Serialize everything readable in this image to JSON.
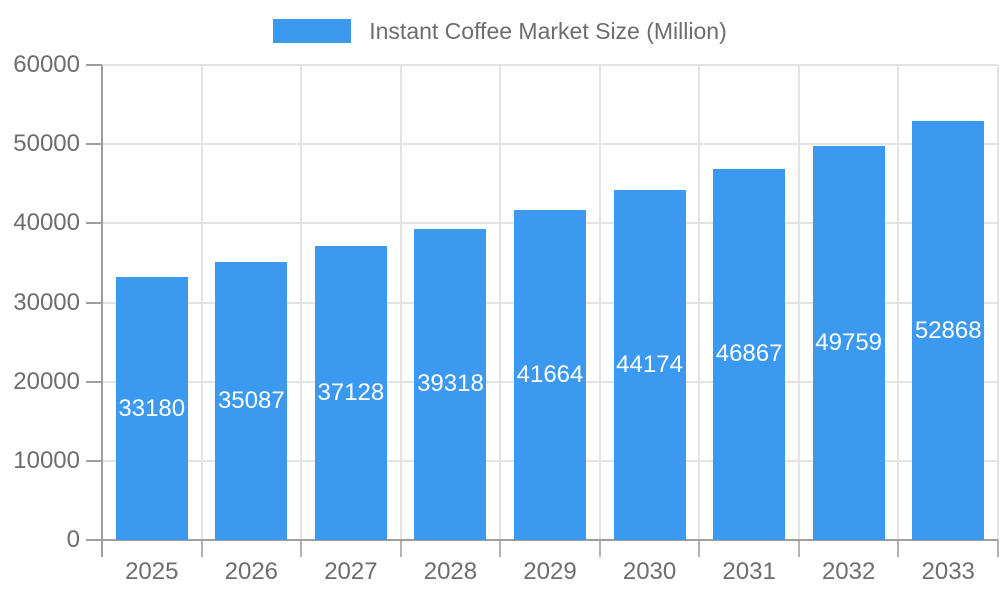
{
  "legend": {
    "position": "top-center"
  },
  "colors": {
    "bar": "#3b99f0",
    "axis_line": "#9e9e9e",
    "grid_line": "#e4e4e4",
    "boundary_tick": "#b3b3b3",
    "tick_text": "#6d6d6d",
    "bar_label_text": "#ffffff",
    "background": "#ffffff"
  },
  "chart_data": {
    "type": "bar",
    "title": "Instant Coffee Market Size (Million)",
    "categories": [
      "2025",
      "2026",
      "2027",
      "2028",
      "2029",
      "2030",
      "2031",
      "2032",
      "2033"
    ],
    "series": [
      {
        "name": "Instant Coffee Market Size (Million)",
        "color": "#3b99f0",
        "values": [
          33180,
          35087,
          37128,
          39318,
          41664,
          44174,
          46867,
          49759,
          52868
        ]
      }
    ],
    "bar_labels_shown": true,
    "bar_label_position": "middle",
    "xlabel": "",
    "ylabel": "",
    "ylim": [
      0,
      60000
    ],
    "ytick_step": 10000,
    "yticks": [
      0,
      10000,
      20000,
      30000,
      40000,
      50000,
      60000
    ],
    "grid": true,
    "legend_position": "top-center"
  }
}
